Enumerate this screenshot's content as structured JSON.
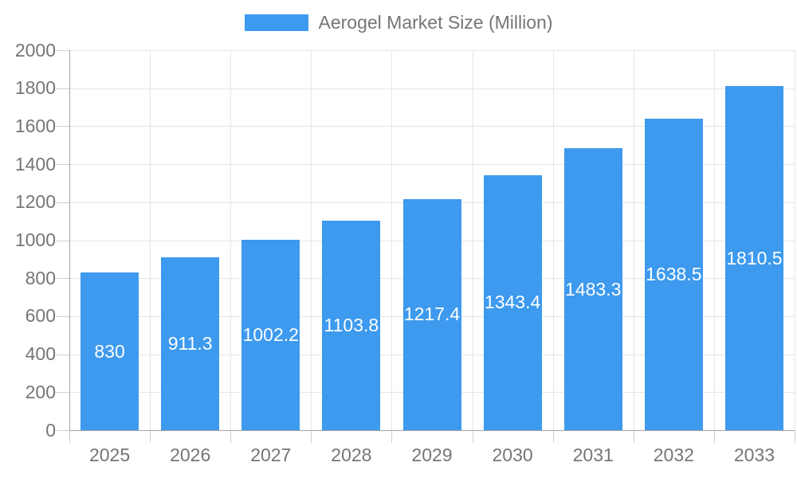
{
  "chart_data": {
    "type": "bar",
    "title": "",
    "legend": "Aerogel Market Size (Million)",
    "categories": [
      "2025",
      "2026",
      "2027",
      "2028",
      "2029",
      "2030",
      "2031",
      "2032",
      "2033"
    ],
    "values": [
      830,
      911.3,
      1002.2,
      1103.8,
      1217.4,
      1343.4,
      1483.3,
      1638.5,
      1810.5
    ],
    "value_labels": [
      "830",
      "911.3",
      "1002.2",
      "1103.8",
      "1217.4",
      "1343.4",
      "1483.3",
      "1638.5",
      "1810.5"
    ],
    "xlabel": "",
    "ylabel": "",
    "ylim": [
      0,
      2000
    ],
    "ytick_step": 200,
    "ytick_labels": [
      "0",
      "200",
      "400",
      "600",
      "800",
      "1000",
      "1200",
      "1400",
      "1600",
      "1800",
      "2000"
    ],
    "grid": "on",
    "legend_position": "top-center",
    "colors": {
      "bar": "#3D9AEE",
      "grid": "#E6E6E6",
      "axis_line": "#A5A5A5",
      "tick": "#CFCFCF",
      "axis_text": "#757575",
      "value_text": "#FFFFFF",
      "legend_text": "#757575",
      "background": "#FFFFFF"
    }
  }
}
